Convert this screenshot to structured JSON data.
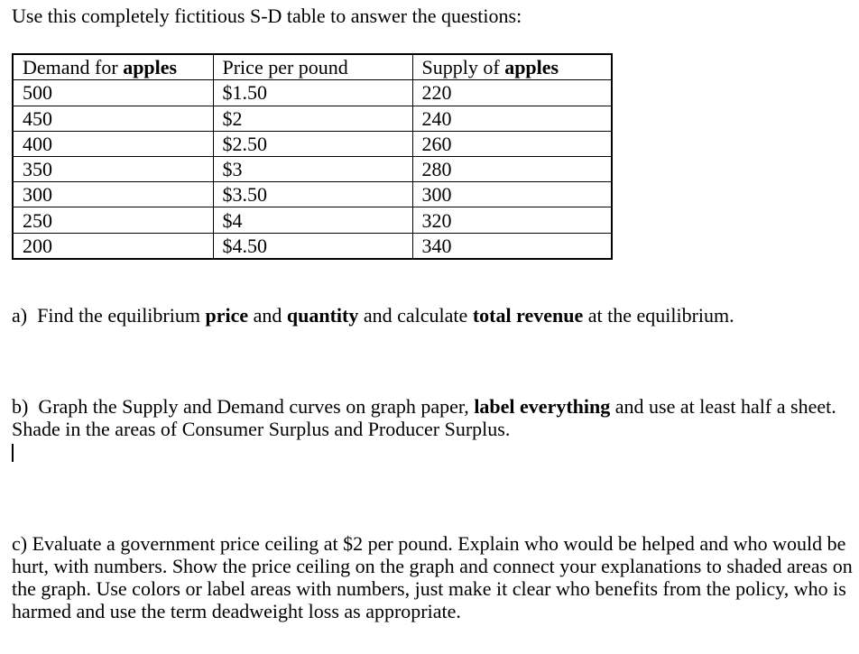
{
  "colors": {
    "background": "#ffffff",
    "text": "#000000",
    "table_border": "#000000"
  },
  "intro": "Use this completely fictitious S-D table to answer the questions:",
  "table": {
    "headers": [
      [
        {
          "text": "Demand for ",
          "bold": false
        },
        {
          "text": "apples",
          "bold": true
        }
      ],
      [
        {
          "text": "Price per pound",
          "bold": false
        }
      ],
      [
        {
          "text": "Supply of ",
          "bold": false
        },
        {
          "text": "apples",
          "bold": true
        }
      ]
    ],
    "rows": [
      [
        "500",
        "$1.50",
        "220"
      ],
      [
        "450",
        "$2",
        "240"
      ],
      [
        "400",
        "$2.50",
        "260"
      ],
      [
        "350",
        "$3",
        "280"
      ],
      [
        "300",
        "$3.50",
        "300"
      ],
      [
        "250",
        "$4",
        "320"
      ],
      [
        "200",
        "$4.50",
        "340"
      ]
    ]
  },
  "questions": {
    "a": {
      "lines": [
        [
          {
            "text": "a)  Find the equilibrium ",
            "bold": false
          },
          {
            "text": "price",
            "bold": true
          },
          {
            "text": " and ",
            "bold": false
          },
          {
            "text": "quantity",
            "bold": true
          },
          {
            "text": " and calculate ",
            "bold": false
          },
          {
            "text": "total revenue",
            "bold": true
          },
          {
            "text": " at the equilibrium.",
            "bold": false
          }
        ]
      ]
    },
    "b": {
      "lines": [
        [
          {
            "text": "b)  Graph the Supply and Demand curves on graph paper, ",
            "bold": false
          },
          {
            "text": "label everything",
            "bold": true
          },
          {
            "text": " and use at least half a sheet.",
            "bold": false
          }
        ],
        [
          {
            "text": "Shade in the areas of Consumer Surplus and Producer Surplus.",
            "bold": false
          }
        ]
      ]
    },
    "c": {
      "lines": [
        [
          {
            "text": "c) Evaluate a government price ceiling at $2 per pound. Explain who would be helped and who would be",
            "bold": false
          }
        ],
        [
          {
            "text": "hurt, with numbers. Show the price ceiling on the graph and connect your explanations to shaded areas on",
            "bold": false
          }
        ],
        [
          {
            "text": "the graph. Use colors or label areas with numbers, just make it clear who benefits from the policy, who is",
            "bold": false
          }
        ],
        [
          {
            "text": "harmed and use the term deadweight loss as appropriate.",
            "bold": false
          }
        ]
      ]
    }
  }
}
